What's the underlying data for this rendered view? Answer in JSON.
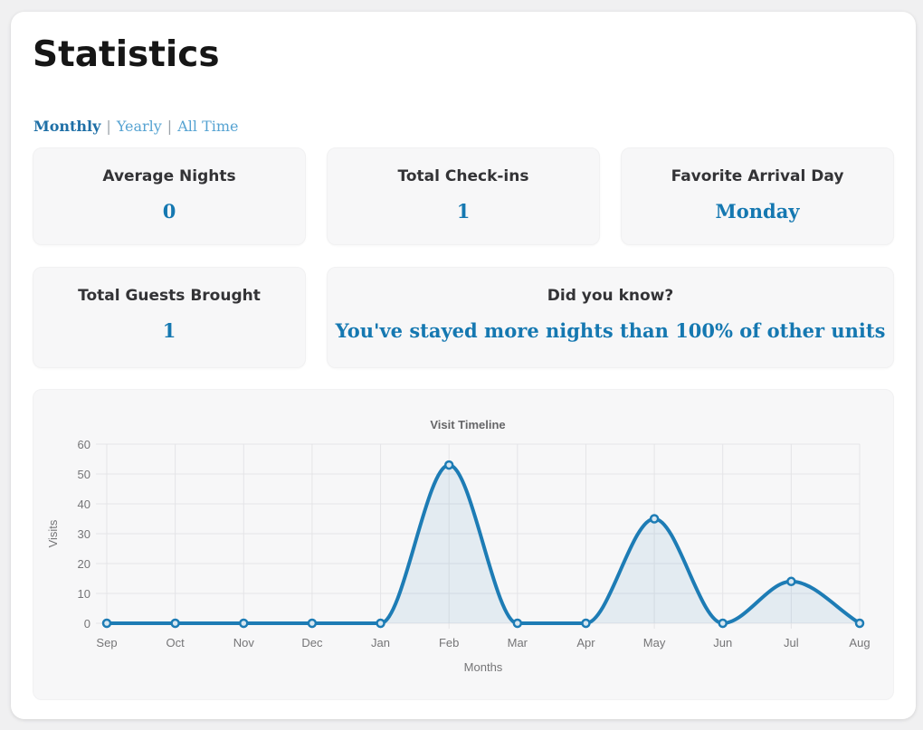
{
  "page": {
    "title": "Statistics"
  },
  "tabs": {
    "separator": "|",
    "items": [
      {
        "label": "Monthly",
        "active": true
      },
      {
        "label": "Yearly",
        "active": false
      },
      {
        "label": "All Time",
        "active": false
      }
    ]
  },
  "stats": [
    {
      "label": "Average Nights",
      "value": "0"
    },
    {
      "label": "Total Check-ins",
      "value": "1"
    },
    {
      "label": "Favorite Arrival Day",
      "value": "Monday"
    },
    {
      "label": "Total Guests Brought",
      "value": "1"
    },
    {
      "label": "Did you know?",
      "value": "You've stayed more nights than 100% of other units"
    }
  ],
  "colors": {
    "accent_blue": "#1578b1",
    "link_active": "#1e6fa6",
    "link_inactive": "#56a3d2",
    "card_bg": "#f7f7f8",
    "grid": "#e4e4e7"
  },
  "chart_data": {
    "type": "line",
    "title": "Visit Timeline",
    "xlabel": "Months",
    "ylabel": "Visits",
    "categories": [
      "Sep",
      "Oct",
      "Nov",
      "Dec",
      "Jan",
      "Feb",
      "Mar",
      "Apr",
      "May",
      "Jun",
      "Jul",
      "Aug"
    ],
    "values": [
      0,
      0,
      0,
      0,
      0,
      53,
      0,
      0,
      35,
      0,
      14,
      0
    ],
    "ylim": [
      0,
      60
    ],
    "yticks": [
      0,
      10,
      20,
      30,
      40,
      50,
      60
    ],
    "grid": true,
    "legend": "none",
    "line_color": "#1d7cb5",
    "fill_color": "rgba(30,123,180,0.09)",
    "point_fill": "#d8e7f1"
  }
}
